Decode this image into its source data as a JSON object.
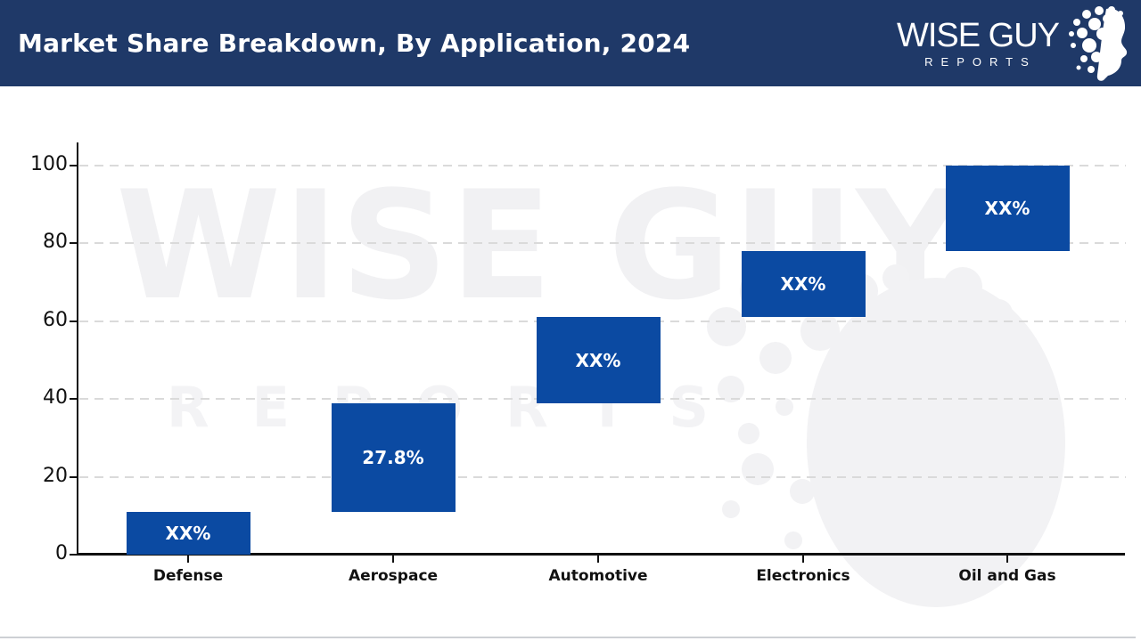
{
  "header": {
    "title": "Market Share Breakdown, By Application, 2024",
    "logo": {
      "line1": "WISE GUY",
      "line2": "REPORTS"
    }
  },
  "watermark": {
    "line1": "WISE GUY",
    "line2": "REPORTS"
  },
  "colors": {
    "header_bg": "#1f3968",
    "bar": "#0b4aa2",
    "grid": "#dadada",
    "axis": "#111111",
    "bar_label_text": "#ffffff",
    "watermark": "#f1f1f3"
  },
  "chart_data": {
    "type": "bar",
    "subtype": "waterfall",
    "title": "Market Share Breakdown, By Application, 2024",
    "categories": [
      "Defense",
      "Aerospace",
      "Automotive",
      "Electronics",
      "Oil and Gas"
    ],
    "segments": [
      {
        "category": "Defense",
        "start": 0,
        "end": 11,
        "label": "XX%"
      },
      {
        "category": "Aerospace",
        "start": 11,
        "end": 38.8,
        "label": "27.8%"
      },
      {
        "category": "Automotive",
        "start": 38.8,
        "end": 61,
        "label": "XX%"
      },
      {
        "category": "Electronics",
        "start": 61,
        "end": 78,
        "label": "XX%"
      },
      {
        "category": "Oil and Gas",
        "start": 78,
        "end": 100,
        "label": "XX%"
      }
    ],
    "xlabel": "",
    "ylabel": "",
    "ylim": [
      0,
      100
    ],
    "yticks": [
      0,
      20,
      40,
      60,
      80,
      100
    ],
    "grid": "horizontal-dashed",
    "legend": "none",
    "bar_color": "#0b4aa2"
  }
}
